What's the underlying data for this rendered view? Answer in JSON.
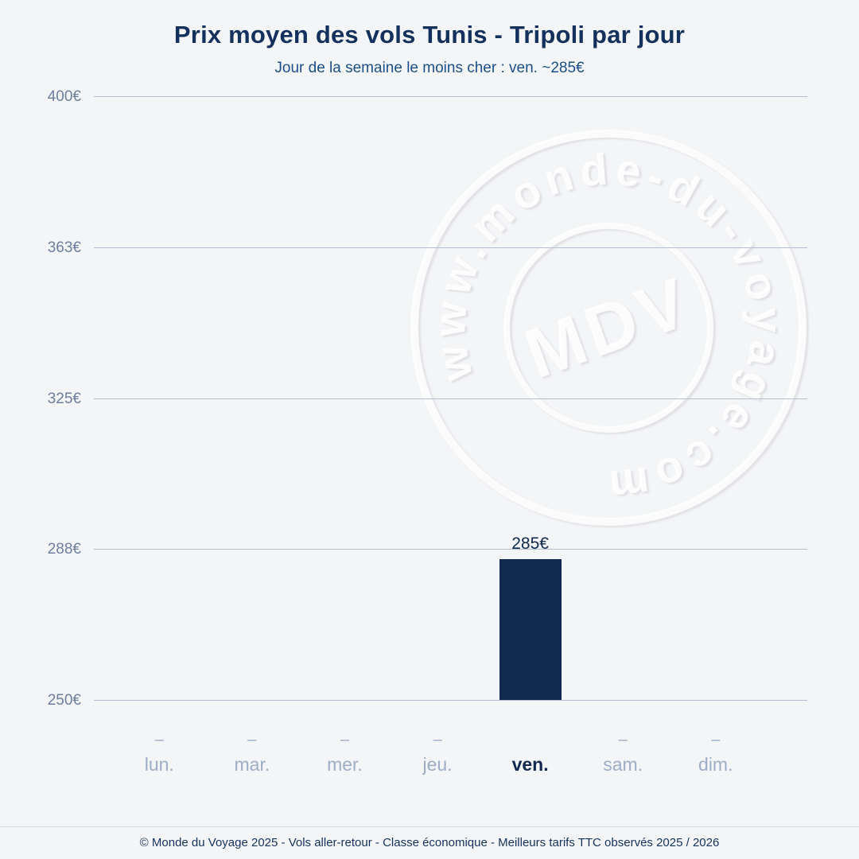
{
  "chart_data": {
    "type": "bar",
    "title": "Prix moyen des vols Tunis - Tripoli par jour",
    "subtitle": "Jour de la semaine le moins cher : ven. ~285€",
    "categories": [
      "lun.",
      "mar.",
      "mer.",
      "jeu.",
      "ven.",
      "sam.",
      "dim."
    ],
    "values": [
      null,
      null,
      null,
      null,
      285,
      null,
      null
    ],
    "bar_label": "285€",
    "ylim": [
      250,
      400
    ],
    "yticks": [
      "400€",
      "363€",
      "325€",
      "288€",
      "250€"
    ],
    "highlight_category": "ven.",
    "empty_marker": "–",
    "xlabel": "",
    "ylabel": "",
    "grid": "horizontal-only",
    "legend": "none"
  },
  "watermark": {
    "circular_text": "www.monde-du-voyage.com",
    "center_text": "MDV"
  },
  "footer": {
    "text": "© Monde du Voyage 2025 - Vols aller-retour - Classe économique - Meilleurs tarifs TTC observés 2025 / 2026"
  },
  "colors": {
    "background": "#f4f5f7",
    "title": "#14305c",
    "subtitle": "#1b4f8a",
    "bar": "#12294f",
    "gridline": "#b5bfcf",
    "axis_label": "#6e7e9e",
    "day_label": "#9dadc6",
    "footer_text": "#16325c"
  }
}
